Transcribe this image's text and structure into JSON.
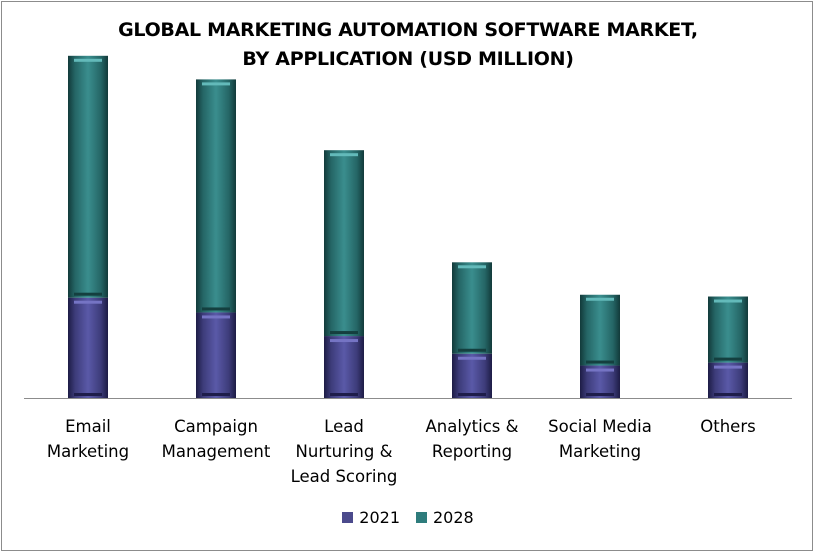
{
  "chart_data": {
    "type": "bar",
    "stacked": true,
    "title": [
      "GLOBAL MARKETING AUTOMATION SOFTWARE MARKET,",
      "BY APPLICATION (USD MILLION)"
    ],
    "categories": [
      [
        "Email",
        "Marketing"
      ],
      [
        "Campaign",
        "Management"
      ],
      [
        "Lead",
        "Nurturing &",
        "Lead Scoring"
      ],
      [
        "Analytics &",
        "Reporting"
      ],
      [
        "Social Media",
        "Marketing"
      ],
      [
        "Others"
      ]
    ],
    "series": [
      {
        "name": "2021",
        "color": "#4b4a8c",
        "values": [
          1700,
          1450,
          1050,
          750,
          550,
          600
        ]
      },
      {
        "name": "2028",
        "color": "#2e7c7c",
        "values": [
          4100,
          3950,
          3150,
          1550,
          1200,
          1120
        ]
      }
    ],
    "ylim": [
      0,
      6000
    ],
    "grid": false,
    "legend_position": "bottom"
  }
}
